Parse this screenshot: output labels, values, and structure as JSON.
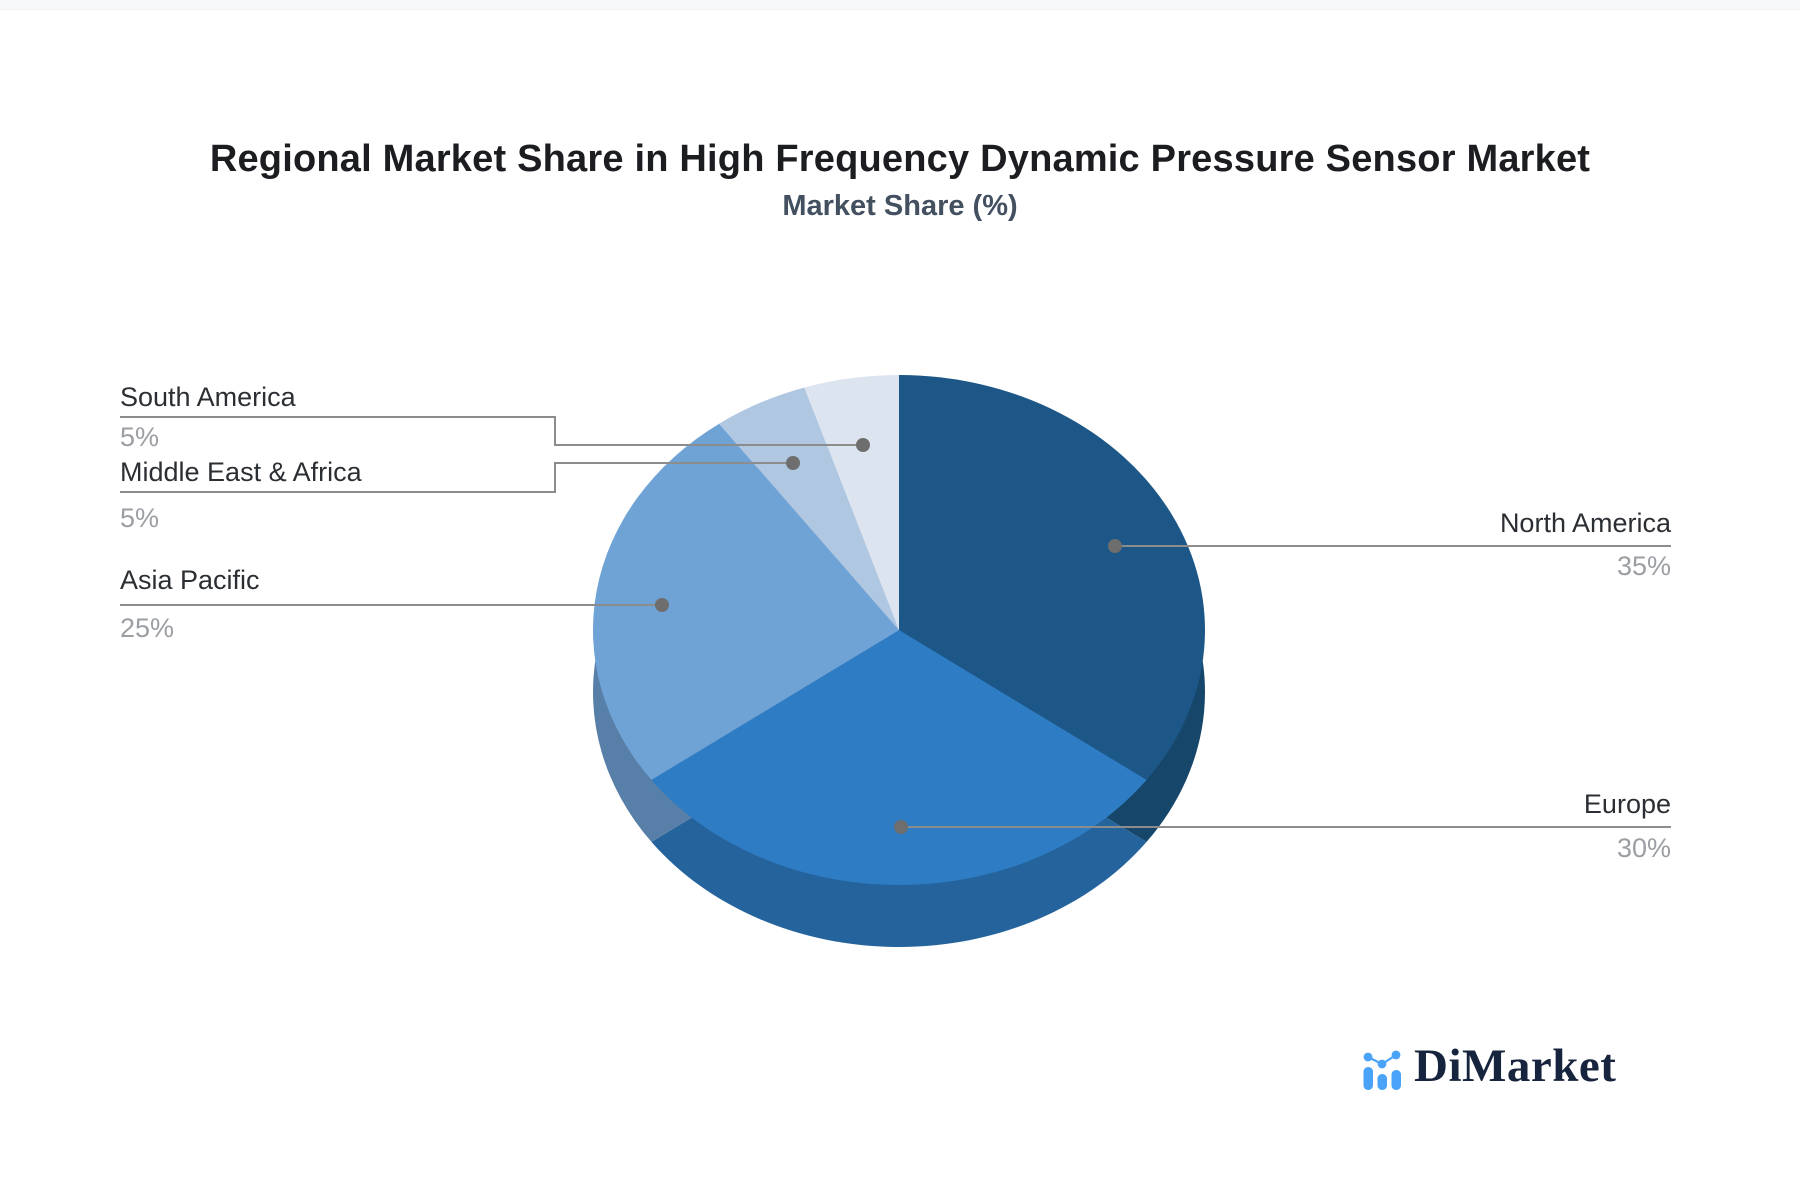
{
  "header": {
    "title": "Regional Market Share in High Frequency Dynamic Pressure Sensor Market",
    "subtitle": "Market Share (%)"
  },
  "chart_data": {
    "type": "pie",
    "title": "Regional Market Share in High Frequency Dynamic Pressure Sensor Market",
    "subtitle": "Market Share (%)",
    "unit": "%",
    "style": "3d-pie, no legend, callout labels with leader lines and dots",
    "start_angle": "12 o'clock, clockwise",
    "slices": [
      {
        "label": "North America",
        "value": 35,
        "value_label": "35%",
        "color": "#1d5787",
        "side_color": "#17466b",
        "label_side": "right"
      },
      {
        "label": "Europe",
        "value": 30,
        "value_label": "30%",
        "color": "#2e7cc4",
        "side_color": "#25639c",
        "label_side": "right"
      },
      {
        "label": "Asia Pacific",
        "value": 25,
        "value_label": "25%",
        "color": "#6fa3d6",
        "side_color": "#587fa8",
        "label_side": "left"
      },
      {
        "label": "Middle East & Africa",
        "value": 5,
        "value_label": "5%",
        "color": "#b0c7e2",
        "side_color": "#8fa8c4",
        "label_side": "left"
      },
      {
        "label": "South America",
        "value": 5,
        "value_label": "5%",
        "color": "#dce4f0",
        "side_color": "#b9c4d6",
        "label_side": "left"
      }
    ],
    "colors": {
      "leader_line": "#8c8c8c",
      "leader_dot": "#6e6e6e",
      "title_text": "#1b1d21",
      "subtitle_text": "#435060",
      "label_text": "#2b2f33",
      "value_text": "#9b9ea3"
    }
  },
  "logo": {
    "brand": "DiMarket",
    "icon": "bar-chart-with-trend-dots",
    "icon_color": "#4aa3f7",
    "text_color": "#17243d"
  }
}
